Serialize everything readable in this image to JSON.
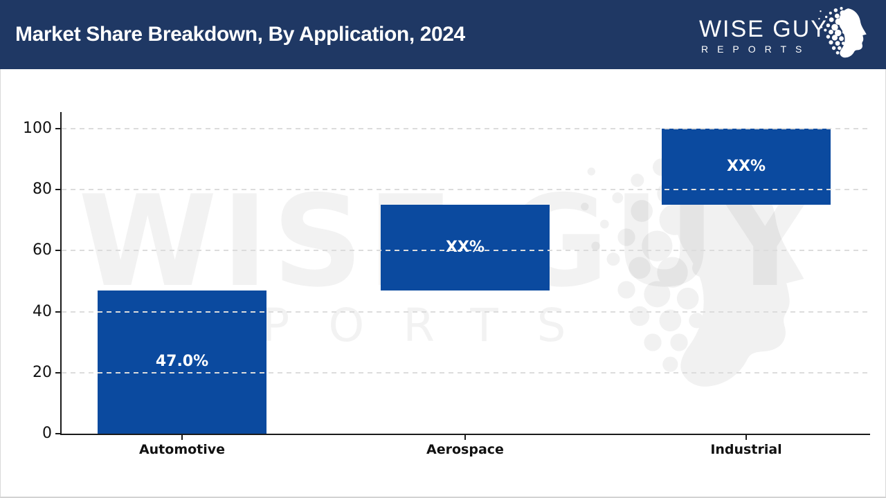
{
  "header": {
    "title": "Market Share Breakdown, By Application, 2024",
    "bg_color": "#1F3864",
    "logo": {
      "wordmark": "WISE GUY",
      "subtext": "REPORTS"
    }
  },
  "watermark": {
    "line1": "WISE GUY",
    "line2": "REPORTS"
  },
  "chart_data": {
    "type": "bar",
    "subtype": "floating-segment-waterfall",
    "title": "Market Share Breakdown, By Application, 2024",
    "categories": [
      "Automotive",
      "Aerospace",
      "Industrial"
    ],
    "segments": [
      {
        "category": "Automotive",
        "start": 0,
        "end": 47,
        "label": "47.0%"
      },
      {
        "category": "Aerospace",
        "start": 47,
        "end": 75,
        "label": "XX%"
      },
      {
        "category": "Industrial",
        "start": 75,
        "end": 100,
        "label": "XX%"
      }
    ],
    "xlabel": "",
    "ylabel": "",
    "yticks": [
      0,
      20,
      40,
      60,
      80,
      100
    ],
    "ylim": [
      0,
      105
    ],
    "grid": "dashed-horizontal",
    "legend": "none",
    "bar_color": "#0B4A9F",
    "bar_label_color": "#FFFFFF",
    "grid_color": "#DCDCDC",
    "axis_color": "#1a1a1a"
  }
}
